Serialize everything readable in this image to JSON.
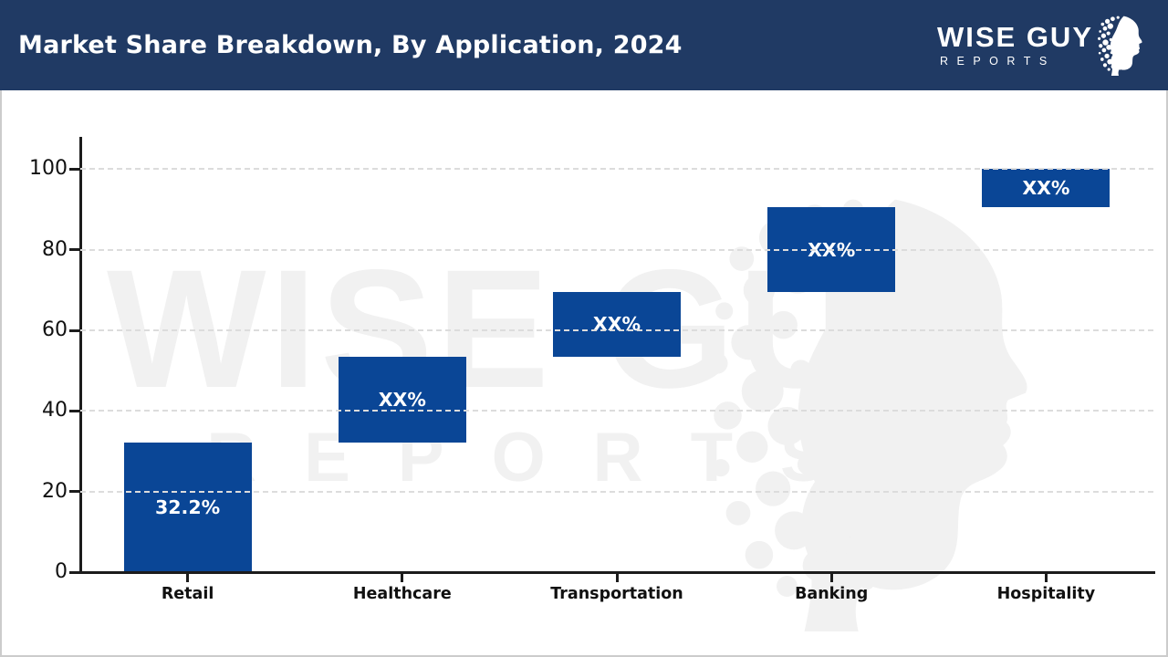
{
  "header": {
    "title": "Market Share Breakdown, By Application, 2024"
  },
  "brand": {
    "name": "WISE GUY",
    "subname": "REPORTS"
  },
  "watermark": {
    "line1": "WISE GUY",
    "line2": "REPORTS"
  },
  "chart_data": {
    "type": "bar",
    "subtype": "waterfall",
    "title": "Market Share Breakdown, By Application, 2024",
    "xlabel": "",
    "ylabel": "",
    "categories": [
      "Retail",
      "Healthcare",
      "Transportation",
      "Banking",
      "Hospitality"
    ],
    "bars": [
      {
        "category": "Retail",
        "start": 0,
        "end": 32.2,
        "label": "32.2%"
      },
      {
        "category": "Healthcare",
        "start": 32.2,
        "end": 53.5,
        "label": "XX%"
      },
      {
        "category": "Transportation",
        "start": 53.5,
        "end": 69.5,
        "label": "XX%"
      },
      {
        "category": "Banking",
        "start": 69.5,
        "end": 90.5,
        "label": "XX%"
      },
      {
        "category": "Hospitality",
        "start": 90.5,
        "end": 100,
        "label": "XX%"
      }
    ],
    "values_increment_estimate": [
      32.2,
      21.3,
      16.0,
      21.0,
      9.5
    ],
    "yticks": [
      0,
      20,
      40,
      60,
      80,
      100
    ],
    "ylim": [
      0,
      108
    ],
    "grid": "horizontal-dashed",
    "legend": "none",
    "bar_color": "#0a4696",
    "label_color": "#ffffff"
  },
  "colors": {
    "header_bg": "#203a64",
    "bar": "#0a4696",
    "grid": "#dcdcdc",
    "axis": "#1c1c1c",
    "canvas_border": "#cccccc",
    "watermark": "#f1f1f1"
  }
}
